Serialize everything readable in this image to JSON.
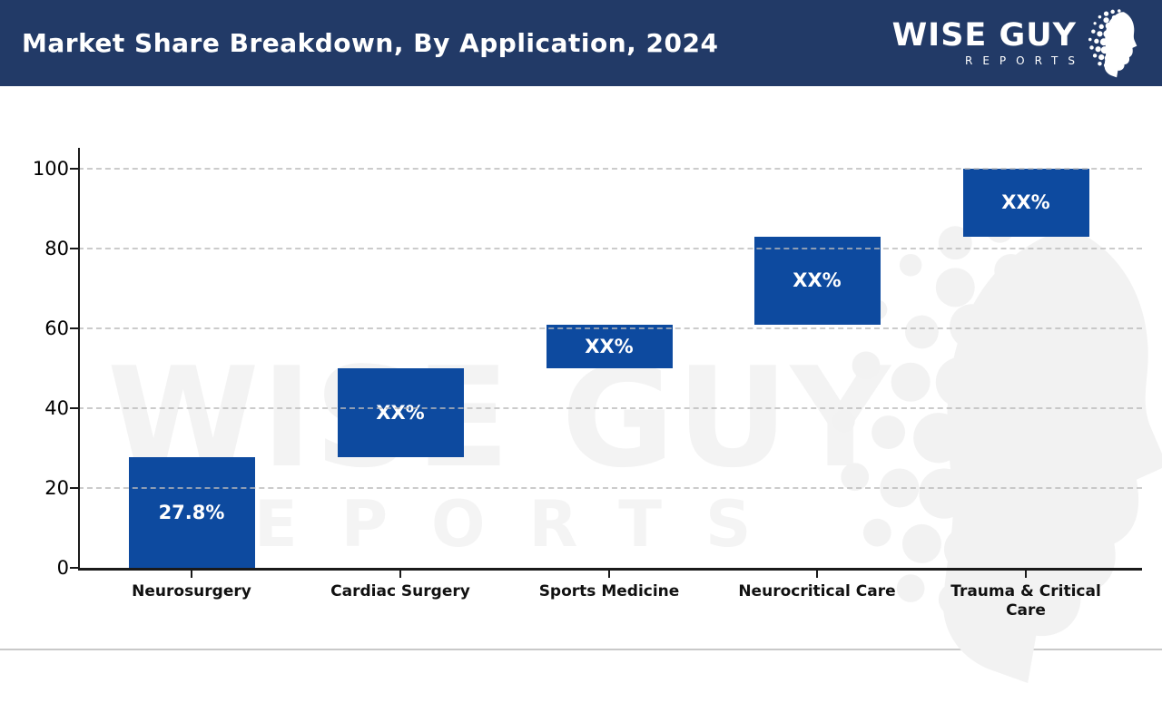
{
  "header": {
    "title": "Market Share Breakdown, By Application, 2024",
    "brand": {
      "line1": "WISE GUY",
      "line2": "REPORTS"
    }
  },
  "watermark": {
    "line1": "WISE GUY",
    "line2": "REPORTS"
  },
  "colors": {
    "header_bg": "#223a67",
    "bar": "#0d4a9f",
    "axis": "#1a1a1a",
    "grid": "#b9b9b9",
    "watermark": "#f3f3f3",
    "bar_label_text": "#ffffff"
  },
  "chart_data": {
    "type": "bar",
    "subtype": "waterfall",
    "title": "Market Share Breakdown, By Application, 2024",
    "categories": [
      "Neurosurgery",
      "Cardiac Surgery",
      "Sports Medicine",
      "Neurocritical Care",
      "Trauma & Critical Care"
    ],
    "categories_display": [
      "Neurosurgery",
      "Cardiac Surgery",
      "Sports Medicine",
      "Neurocritical Care",
      "Trauma & Critical\nCare"
    ],
    "series": [
      {
        "name": "Market share (%)",
        "segments": [
          {
            "category": "Neurosurgery",
            "start": 0,
            "end": 27.8,
            "label": "27.8%"
          },
          {
            "category": "Cardiac Surgery",
            "start": 27.8,
            "end": 50,
            "label": "XX%"
          },
          {
            "category": "Sports Medicine",
            "start": 50,
            "end": 61,
            "label": "XX%"
          },
          {
            "category": "Neurocritical Care",
            "start": 61,
            "end": 83,
            "label": "XX%"
          },
          {
            "category": "Trauma & Critical Care",
            "start": 83,
            "end": 100,
            "label": "XX%"
          }
        ]
      }
    ],
    "xlabel": "",
    "ylabel": "",
    "ylim": [
      0,
      110
    ],
    "yticks": [
      0,
      20,
      40,
      60,
      80,
      100
    ],
    "grid": "horizontal-dashed-over-bars",
    "legend": "none",
    "bar_color": "#0d4a9f"
  }
}
